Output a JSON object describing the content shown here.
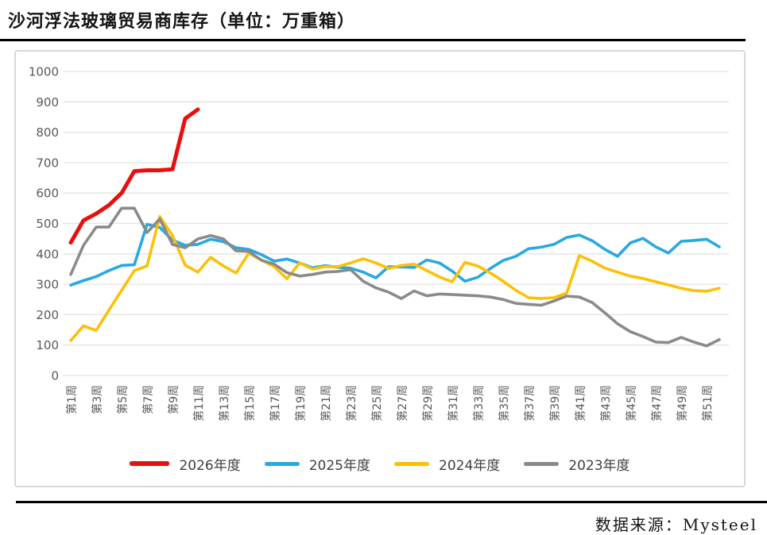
{
  "title": "沙河浮法玻璃贸易商库存（单位：万重箱）",
  "source": "数据来源：Mysteel",
  "colors": {
    "red_2026": "#e8100f",
    "blue_2025": "#29a8e1",
    "yellow_2024": "#fcc006",
    "gray_2023": "#8a8a8a",
    "gridline": "#e3e3e3",
    "axis_text": "#595959",
    "box_border": "#d8d8d8"
  },
  "chart_data": {
    "type": "line",
    "title": "沙河浮法玻璃贸易商库存（单位：万重箱）",
    "xlabel": "",
    "ylabel": "",
    "ylim": [
      0,
      1000
    ],
    "ytick_step": 100,
    "grid": true,
    "legend_position": "bottom",
    "weeks_total": 52,
    "y_tick_labels": [
      "0",
      "100",
      "200",
      "300",
      "400",
      "500",
      "600",
      "700",
      "800",
      "900",
      "1000"
    ],
    "x_tick_labels": [
      "第1周",
      "第3周",
      "第5周",
      "第7周",
      "第9周",
      "第11周",
      "第13周",
      "第15周",
      "第17周",
      "第19周",
      "第21周",
      "第23周",
      "第25周",
      "第27周",
      "第29周",
      "第31周",
      "第33周",
      "第35周",
      "第37周",
      "第39周",
      "第41周",
      "第43周",
      "第45周",
      "第47周",
      "第49周",
      "第51周"
    ],
    "series": [
      {
        "name": "2026年度",
        "color": "#e8100f",
        "values": [
          437,
          510,
          532,
          560,
          600,
          672,
          675,
          675,
          678,
          845,
          875
        ]
      },
      {
        "name": "2025年度",
        "color": "#29a8e1",
        "values": [
          297,
          312,
          325,
          345,
          362,
          364,
          497,
          487,
          445,
          428,
          431,
          448,
          440,
          420,
          415,
          397,
          376,
          383,
          370,
          354,
          361,
          356,
          353,
          340,
          321,
          358,
          357,
          355,
          380,
          370,
          343,
          310,
          323,
          352,
          378,
          392,
          417,
          422,
          431,
          454,
          462,
          443,
          415,
          392,
          436,
          451,
          423,
          403,
          441,
          444,
          448,
          423
        ]
      },
      {
        "name": "2024年度",
        "color": "#fcc006",
        "values": [
          115,
          163,
          148,
          215,
          280,
          345,
          360,
          523,
          460,
          363,
          340,
          389,
          360,
          337,
          402,
          379,
          358,
          318,
          370,
          350,
          358,
          358,
          370,
          384,
          370,
          352,
          362,
          366,
          345,
          324,
          308,
          372,
          360,
          337,
          310,
          280,
          256,
          253,
          256,
          271,
          394,
          376,
          353,
          340,
          327,
          319,
          308,
          298,
          287,
          279,
          277,
          287
        ]
      },
      {
        "name": "2023年度",
        "color": "#8a8a8a",
        "values": [
          332,
          428,
          488,
          488,
          550,
          550,
          470,
          515,
          431,
          420,
          449,
          460,
          449,
          410,
          408,
          379,
          366,
          338,
          327,
          332,
          340,
          342,
          348,
          310,
          288,
          274,
          253,
          278,
          262,
          268,
          266,
          264,
          262,
          258,
          250,
          237,
          234,
          231,
          245,
          261,
          258,
          240,
          206,
          170,
          144,
          128,
          110,
          108,
          125,
          110,
          97,
          118
        ]
      }
    ]
  }
}
